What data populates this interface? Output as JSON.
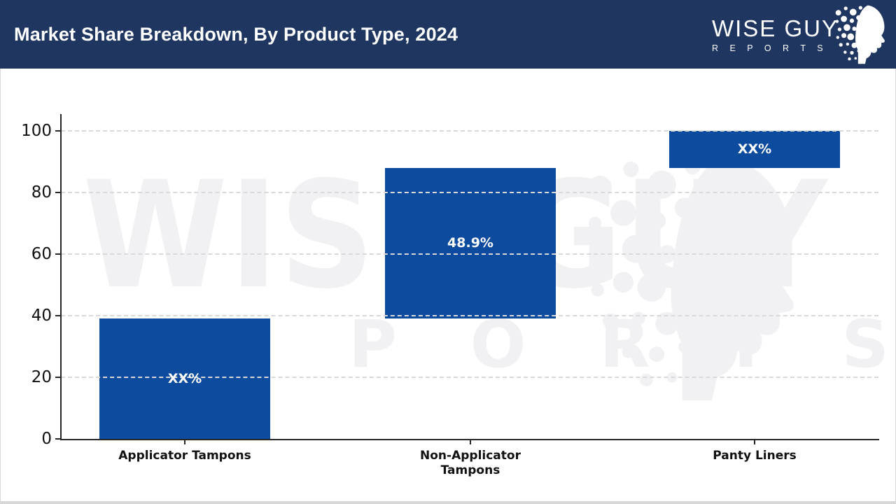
{
  "header": {
    "title": "Market Share Breakdown, By Product Type, 2024",
    "bg_color": "#1f3660",
    "logo": {
      "wordmark": "WISE GUY",
      "subtitle": "R E P O R T S"
    }
  },
  "watermark": {
    "line1": "WISE GUY",
    "line2": "R E P O R T S"
  },
  "chart_data": {
    "type": "bar",
    "variant": "waterfall",
    "title": "Market Share Breakdown, By Product Type, 2024",
    "categories": [
      "Applicator Tampons",
      "Non-Applicator Tampons",
      "Panty Liners"
    ],
    "bars": [
      {
        "category": "Applicator Tampons",
        "start": 0,
        "end": 39.1,
        "label": "XX%"
      },
      {
        "category": "Non-Applicator Tampons",
        "start": 39.1,
        "end": 88.0,
        "label": "48.9%"
      },
      {
        "category": "Panty Liners",
        "start": 88.0,
        "end": 100,
        "label": "XX%"
      }
    ],
    "values_pct": [
      39.1,
      48.9,
      12.0
    ],
    "bar_labels": [
      "XX%",
      "48.9%",
      "XX%"
    ],
    "ylim": [
      0,
      100
    ],
    "yticks": [
      0,
      20,
      40,
      60,
      80,
      100
    ],
    "grid": {
      "axis": "y",
      "style": "dashed",
      "color": "#d9d9d9"
    },
    "legend": "none",
    "bar_color": "#0c4b9e",
    "bar_label_color": "#ffffff",
    "axis_color": "#262626",
    "tick_label_color": "#111111"
  }
}
